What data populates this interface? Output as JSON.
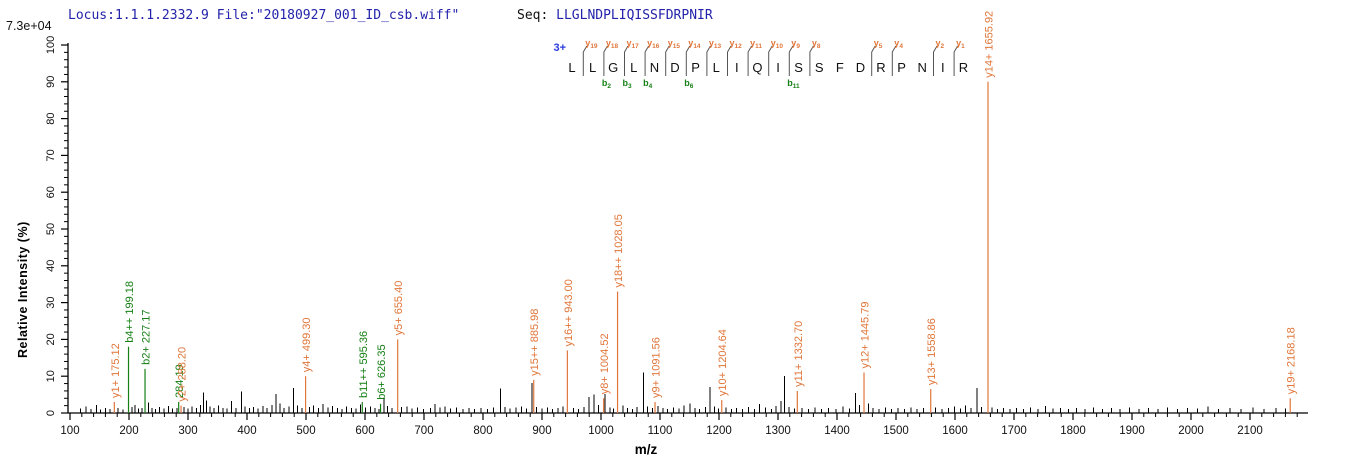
{
  "header": {
    "locus_file": "Locus:1.1.1.2332.9 File:\"20180927_001_ID_csb.wiff\"",
    "seq_label": "Seq:",
    "seq_value": "LLGLNDPLIQISSFDRPNIR"
  },
  "colors": {
    "y_ion": "#E0763A",
    "b_ion": "#168016",
    "header_blue": "#2222AA",
    "charge_blue": "#2A3BDD",
    "peak_black": "#000000",
    "axis": "#000000",
    "separator": "#555555"
  },
  "sequence_annotation": {
    "charge_label": "3+",
    "residues": [
      "L",
      "L",
      "G",
      "L",
      "N",
      "D",
      "P",
      "L",
      "I",
      "Q",
      "I",
      "S",
      "S",
      "F",
      "D",
      "R",
      "P",
      "N",
      "I",
      "R"
    ],
    "cleavages": [
      {
        "after": 1,
        "y": "19"
      },
      {
        "after": 2,
        "y": "18",
        "b": "2"
      },
      {
        "after": 3,
        "y": "17",
        "b": "3"
      },
      {
        "after": 4,
        "y": "16",
        "b": "4"
      },
      {
        "after": 5,
        "y": "15"
      },
      {
        "after": 6,
        "y": "14",
        "b": "6"
      },
      {
        "after": 7,
        "y": "13"
      },
      {
        "after": 8,
        "y": "12"
      },
      {
        "after": 9,
        "y": "11"
      },
      {
        "after": 10,
        "y": "10"
      },
      {
        "after": 11,
        "y": "9",
        "b": "11"
      },
      {
        "after": 12,
        "y": "8"
      },
      {
        "after": 15,
        "y": "5"
      },
      {
        "after": 16,
        "y": "4"
      },
      {
        "after": 18,
        "y": "2"
      },
      {
        "after": 19,
        "y": "1"
      }
    ]
  },
  "chart_data": {
    "type": "bar",
    "title": "",
    "xlabel": "m/z",
    "ylabel": "Relative  Intensity (%)",
    "max_intensity": "7.3e+04",
    "xlim": [
      100,
      2190
    ],
    "ylim": [
      0,
      100
    ],
    "x_major_tick": 100,
    "x_minor_tick": 20,
    "y_major_tick": 10,
    "y_minor_tick": 2,
    "annotated_peaks": [
      {
        "label": "y1+ 175.12",
        "mz": 175.12,
        "pct": 3,
        "series": "y"
      },
      {
        "label": "b4++ 199.18",
        "mz": 199.18,
        "pct": 18,
        "series": "b"
      },
      {
        "label": "b2+ 227.17",
        "mz": 227.17,
        "pct": 12,
        "series": "b"
      },
      {
        "label": "284.19",
        "mz": 284.19,
        "pct": 3,
        "series": "b"
      },
      {
        "label": "y2+ 288.20",
        "mz": 288.2,
        "pct": 2,
        "series": "y"
      },
      {
        "label": "y4+ 499.30",
        "mz": 499.3,
        "pct": 10,
        "series": "y"
      },
      {
        "label": "b11++ 595.36",
        "mz": 595.36,
        "pct": 3,
        "series": "b"
      },
      {
        "label": "b6+ 626.35",
        "mz": 626.35,
        "pct": 2.5,
        "series": "b"
      },
      {
        "label": "y5+ 655.40",
        "mz": 655.4,
        "pct": 20,
        "series": "y"
      },
      {
        "label": "y15++ 885.98",
        "mz": 885.98,
        "pct": 9,
        "series": "y"
      },
      {
        "label": "y16++ 943.00",
        "mz": 943.0,
        "pct": 17,
        "series": "y"
      },
      {
        "label": "y8+ 1004.52",
        "mz": 1004.52,
        "pct": 4,
        "series": "y"
      },
      {
        "label": "y18++ 1028.05",
        "mz": 1028.05,
        "pct": 33,
        "series": "y"
      },
      {
        "label": "y9+ 1091.56",
        "mz": 1091.56,
        "pct": 3,
        "series": "y"
      },
      {
        "label": "y10+ 1204.64",
        "mz": 1204.64,
        "pct": 3.5,
        "series": "y"
      },
      {
        "label": "y11+ 1332.70",
        "mz": 1332.7,
        "pct": 6,
        "series": "y"
      },
      {
        "label": "y12+ 1445.79",
        "mz": 1445.79,
        "pct": 11,
        "series": "y"
      },
      {
        "label": "y13+ 1558.86",
        "mz": 1558.86,
        "pct": 6.5,
        "series": "y"
      },
      {
        "label": "y14+ 1655.92",
        "mz": 1655.92,
        "pct": 90,
        "series": "y"
      },
      {
        "label": "y19+ 2168.18",
        "mz": 2168.18,
        "pct": 4,
        "series": "y"
      }
    ],
    "noise_peaks": [
      [
        118,
        1.2
      ],
      [
        127,
        1.8
      ],
      [
        136,
        1.1
      ],
      [
        145,
        2.2
      ],
      [
        152,
        1
      ],
      [
        160,
        1.4
      ],
      [
        168,
        1.1
      ],
      [
        181,
        1.3
      ],
      [
        190,
        1
      ],
      [
        205,
        1.6
      ],
      [
        210,
        2.2
      ],
      [
        216,
        1.2
      ],
      [
        222,
        1.4
      ],
      [
        233,
        2.8
      ],
      [
        239,
        1.3
      ],
      [
        245,
        1.1
      ],
      [
        252,
        1.6
      ],
      [
        259,
        1.2
      ],
      [
        267,
        1.9
      ],
      [
        274,
        1.2
      ],
      [
        281,
        1.4
      ],
      [
        293,
        1.6
      ],
      [
        300,
        1.2
      ],
      [
        307,
        1.8
      ],
      [
        314,
        1.3
      ],
      [
        321,
        2.2
      ],
      [
        326,
        5.6
      ],
      [
        331,
        3.4
      ],
      [
        337,
        1.8
      ],
      [
        344,
        1.3
      ],
      [
        352,
        2
      ],
      [
        359,
        1.4
      ],
      [
        366,
        1.2
      ],
      [
        374,
        3.2
      ],
      [
        381,
        1.4
      ],
      [
        391,
        5.8
      ],
      [
        397,
        1.8
      ],
      [
        404,
        1.3
      ],
      [
        411,
        1.6
      ],
      [
        419,
        1.2
      ],
      [
        427,
        1.9
      ],
      [
        434,
        1.3
      ],
      [
        442,
        2.2
      ],
      [
        449,
        5.2
      ],
      [
        456,
        2.6
      ],
      [
        463,
        1.4
      ],
      [
        471,
        1.8
      ],
      [
        479,
        6.8
      ],
      [
        486,
        2
      ],
      [
        493,
        1.3
      ],
      [
        506,
        1.6
      ],
      [
        513,
        2.1
      ],
      [
        521,
        1.3
      ],
      [
        529,
        2.4
      ],
      [
        537,
        1.5
      ],
      [
        545,
        1.9
      ],
      [
        553,
        1.3
      ],
      [
        561,
        1.1
      ],
      [
        569,
        1.8
      ],
      [
        577,
        1.3
      ],
      [
        585,
        1.2
      ],
      [
        592,
        2.3
      ],
      [
        601,
        1.5
      ],
      [
        609,
        1.7
      ],
      [
        617,
        1.3
      ],
      [
        624,
        1.1
      ],
      [
        632,
        3.8
      ],
      [
        638,
        1.9
      ],
      [
        646,
        1.4
      ],
      [
        662,
        1.6
      ],
      [
        671,
        1.8
      ],
      [
        680,
        1.2
      ],
      [
        689,
        1.5
      ],
      [
        699,
        1.1
      ],
      [
        711,
        1.4
      ],
      [
        719,
        2.4
      ],
      [
        727,
        1.5
      ],
      [
        736,
        1.8
      ],
      [
        745,
        1.2
      ],
      [
        755,
        1.5
      ],
      [
        766,
        1.1
      ],
      [
        776,
        1.4
      ],
      [
        786,
        1.1
      ],
      [
        797,
        1.4
      ],
      [
        808,
        1.1
      ],
      [
        818,
        1.5
      ],
      [
        830,
        6.7
      ],
      [
        837,
        1.6
      ],
      [
        846,
        1.2
      ],
      [
        856,
        1.5
      ],
      [
        865,
        1.8
      ],
      [
        874,
        1.2
      ],
      [
        883,
        8.2
      ],
      [
        891,
        1.6
      ],
      [
        900,
        1.2
      ],
      [
        909,
        1.5
      ],
      [
        918,
        1.1
      ],
      [
        927,
        1.4
      ],
      [
        936,
        1.7
      ],
      [
        953,
        1.4
      ],
      [
        962,
        1.1
      ],
      [
        971,
        1.6
      ],
      [
        980,
        4.4
      ],
      [
        988,
        5
      ],
      [
        996,
        2.2
      ],
      [
        1007,
        5.2
      ],
      [
        1015,
        1.5
      ],
      [
        1021,
        1.2
      ],
      [
        1037,
        2
      ],
      [
        1045,
        1.4
      ],
      [
        1053,
        1.1
      ],
      [
        1061,
        1.6
      ],
      [
        1072,
        11
      ],
      [
        1079,
        1.8
      ],
      [
        1087,
        1.3
      ],
      [
        1097,
        1.9
      ],
      [
        1105,
        1.4
      ],
      [
        1113,
        1.1
      ],
      [
        1123,
        1.5
      ],
      [
        1132,
        1.2
      ],
      [
        1141,
        2.1
      ],
      [
        1151,
        2.6
      ],
      [
        1159,
        1.4
      ],
      [
        1167,
        1.1
      ],
      [
        1177,
        1.6
      ],
      [
        1185,
        7
      ],
      [
        1192,
        1.8
      ],
      [
        1199,
        1.2
      ],
      [
        1212,
        1.5
      ],
      [
        1221,
        1.1
      ],
      [
        1230,
        1.4
      ],
      [
        1240,
        1.1
      ],
      [
        1250,
        1.6
      ],
      [
        1260,
        1.1
      ],
      [
        1269,
        2.4
      ],
      [
        1279,
        1.5
      ],
      [
        1289,
        1.1
      ],
      [
        1297,
        1.9
      ],
      [
        1305,
        3.2
      ],
      [
        1311,
        10
      ],
      [
        1319,
        1.6
      ],
      [
        1328,
        1.2
      ],
      [
        1341,
        1.4
      ],
      [
        1352,
        1.1
      ],
      [
        1363,
        1.5
      ],
      [
        1374,
        1.1
      ],
      [
        1386,
        1.4
      ],
      [
        1398,
        1.1
      ],
      [
        1410,
        1.7
      ],
      [
        1421,
        1.2
      ],
      [
        1431,
        5.4
      ],
      [
        1438,
        2.2
      ],
      [
        1453,
        2.6
      ],
      [
        1461,
        1.4
      ],
      [
        1471,
        1.1
      ],
      [
        1482,
        1.5
      ],
      [
        1492,
        1.1
      ],
      [
        1503,
        1.4
      ],
      [
        1514,
        1.1
      ],
      [
        1525,
        1.5
      ],
      [
        1536,
        1.1
      ],
      [
        1547,
        1.4
      ],
      [
        1567,
        1.5
      ],
      [
        1578,
        1.1
      ],
      [
        1589,
        1.4
      ],
      [
        1599,
        1.8
      ],
      [
        1609,
        1.2
      ],
      [
        1618,
        2
      ],
      [
        1627,
        1.4
      ],
      [
        1637,
        6.8
      ],
      [
        1645,
        1.6
      ],
      [
        1663,
        1.5
      ],
      [
        1672,
        1.1
      ],
      [
        1682,
        1.4
      ],
      [
        1693,
        1.1
      ],
      [
        1704,
        1.4
      ],
      [
        1716,
        1.1
      ],
      [
        1728,
        1.5
      ],
      [
        1741,
        1.1
      ],
      [
        1753,
        1.9
      ],
      [
        1766,
        1.2
      ],
      [
        1779,
        1.4
      ],
      [
        1792,
        1.1
      ],
      [
        1806,
        1.4
      ],
      [
        1820,
        1.1
      ],
      [
        1835,
        1.5
      ],
      [
        1850,
        1.1
      ],
      [
        1865,
        1.4
      ],
      [
        1880,
        1.1
      ],
      [
        1896,
        1.5
      ],
      [
        1912,
        1.1
      ],
      [
        1928,
        1.4
      ],
      [
        1944,
        1.1
      ],
      [
        1960,
        1.5
      ],
      [
        1977,
        1.1
      ],
      [
        1994,
        1.4
      ],
      [
        2011,
        1.2
      ],
      [
        2029,
        1.7
      ],
      [
        2047,
        1.1
      ],
      [
        2066,
        1.4
      ],
      [
        2085,
        1.1
      ],
      [
        2105,
        1.5
      ],
      [
        2124,
        1.1
      ],
      [
        2144,
        1.4
      ],
      [
        2160,
        1.2
      ]
    ]
  }
}
